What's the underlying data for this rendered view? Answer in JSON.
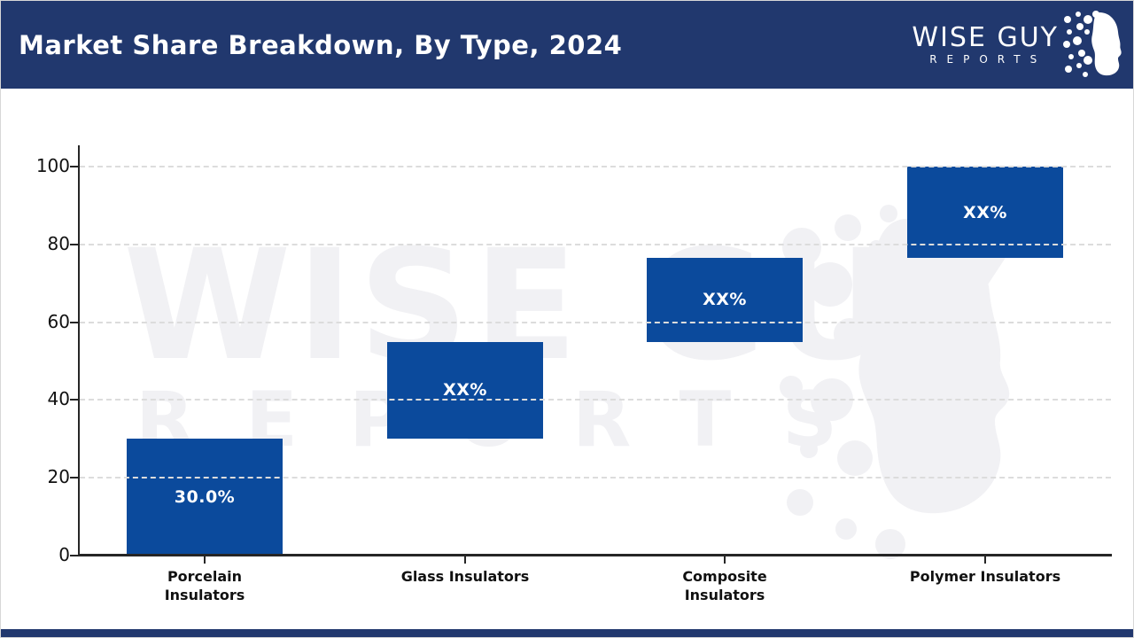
{
  "header": {
    "title": "Market Share Breakdown, By Type, 2024",
    "logo": {
      "wordmark": "WISE GUY",
      "subtitle": "REPORTS"
    }
  },
  "watermark": {
    "wordmark": "WISE GUY",
    "subtitle": "REPORTS"
  },
  "colors": {
    "header_bg": "#21386e",
    "bar": "#0b4a9c",
    "axis": "#262626",
    "grid": "#dcdcdc",
    "watermark": "#f1f1f4",
    "bar_label": "#ffffff",
    "tick_label": "#111111"
  },
  "chart_data": {
    "type": "bar",
    "subtype": "waterfall",
    "title": "Market Share Breakdown, By Type, 2024",
    "categories": [
      "Porcelain\nInsulators",
      "Glass Insulators",
      "Composite\nInsulators",
      "Polymer Insulators"
    ],
    "segments": [
      {
        "category": "Porcelain Insulators",
        "start": 0,
        "end": 30,
        "label": "30.0%"
      },
      {
        "category": "Glass Insulators",
        "start": 30,
        "end": 55,
        "label": "XX%"
      },
      {
        "category": "Composite Insulators",
        "start": 55,
        "end": 76.5,
        "label": "XX%"
      },
      {
        "category": "Polymer Insulators",
        "start": 76.5,
        "end": 100,
        "label": "XX%"
      }
    ],
    "yticks": [
      0,
      20,
      40,
      60,
      80,
      100
    ],
    "ylim": [
      0,
      105
    ],
    "xlabel": "",
    "ylabel": "",
    "grid": "horizontal-dashed",
    "legend": "none"
  }
}
